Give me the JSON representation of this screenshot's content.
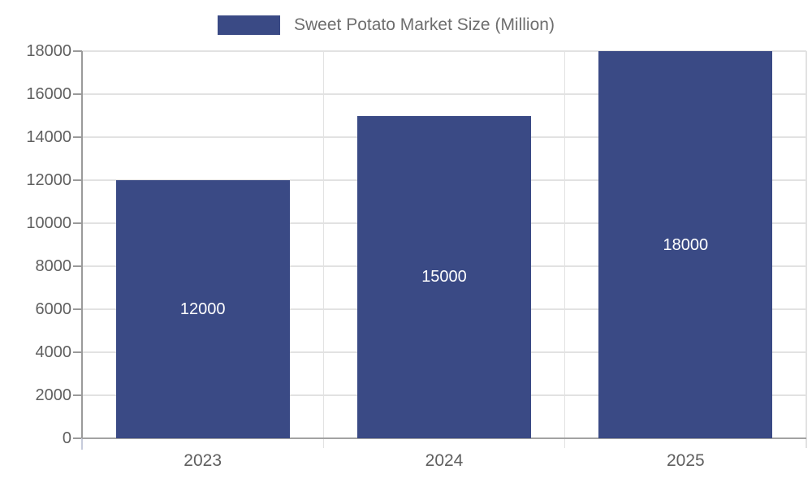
{
  "chart_data": {
    "type": "bar",
    "title": "Sweet Potato Market Size (Million)",
    "categories": [
      "2023",
      "2024",
      "2025"
    ],
    "values": [
      12000,
      15000,
      18000
    ],
    "value_labels": [
      "12000",
      "15000",
      "18000"
    ],
    "ytick_labels": [
      "0",
      "2000",
      "4000",
      "6000",
      "8000",
      "10000",
      "12000",
      "14000",
      "16000",
      "18000"
    ],
    "ylim": [
      0,
      18000
    ],
    "ytick_step": 2000,
    "grid": true,
    "legend_position": "top",
    "colors": {
      "bar": "#3a4a85",
      "bar_value_label": "#ffffff",
      "axis_label": "#5f5f5f",
      "legend_text": "#6e6e6e",
      "grid_line": "#e2e2e2",
      "axis_line": "#a3a3a3",
      "yaxis_line": "#9a9a9a",
      "axis_tick_below": "#c6cbdb",
      "background": "#ffffff"
    }
  }
}
